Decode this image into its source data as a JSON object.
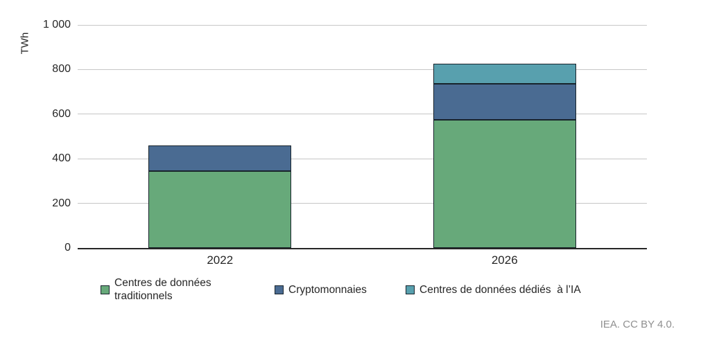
{
  "chart_data": {
    "type": "bar",
    "stacked": true,
    "title": "",
    "ylabel": "TWh",
    "xlabel": "",
    "categories": [
      "2022",
      "2026"
    ],
    "series": [
      {
        "name": "Centres de données traditionnels",
        "color": "#67a97a",
        "values": [
          345,
          575
        ]
      },
      {
        "name": "Cryptomonnaies",
        "color": "#4a6b92",
        "values": [
          115,
          160
        ]
      },
      {
        "name": "Centres de données dédiés  à l’IA",
        "color": "#58a0ae",
        "values": [
          0,
          90
        ]
      }
    ],
    "totals": [
      460,
      825
    ],
    "ylim": [
      0,
      1000
    ],
    "ytick_values": [
      0,
      200,
      400,
      600,
      800,
      1000
    ],
    "ytick_labels": [
      "0",
      "200",
      "400",
      "600",
      "800",
      "1 000"
    ],
    "grid": true,
    "legend_position": "bottom"
  },
  "footer": {
    "attribution": "IEA. CC BY 4.0."
  }
}
